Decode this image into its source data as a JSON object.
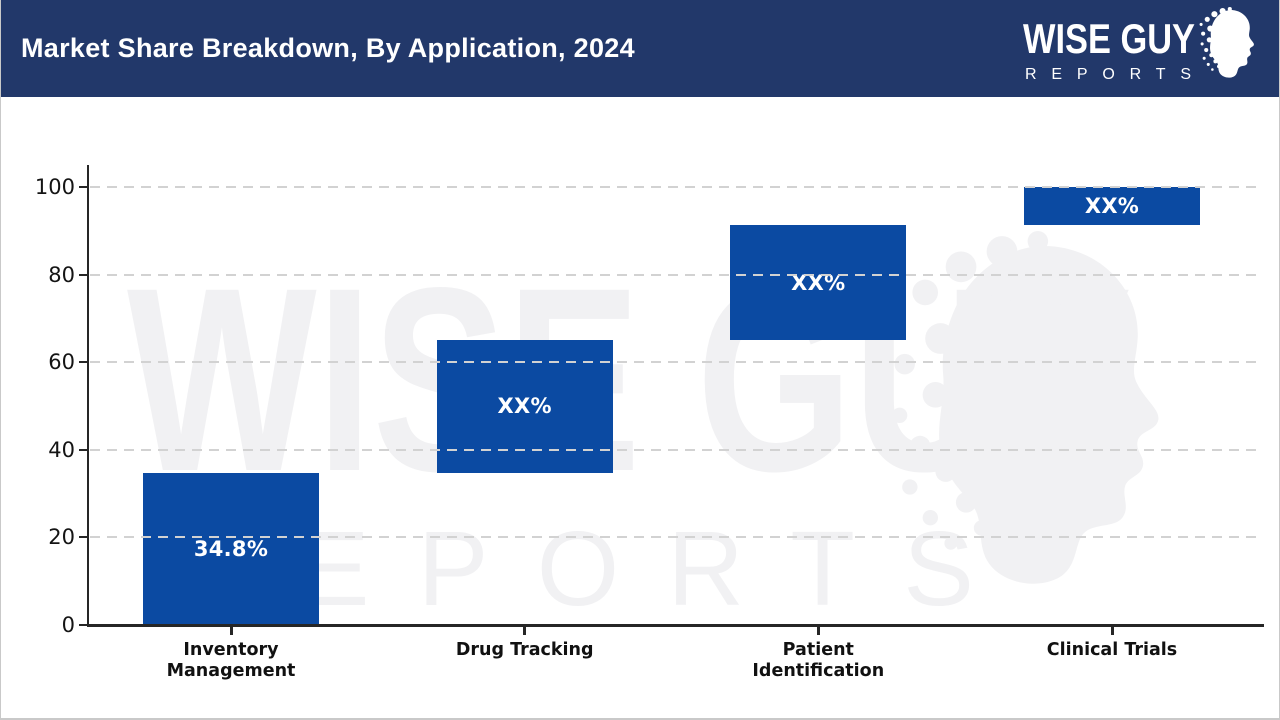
{
  "header": {
    "title": "Market Share Breakdown, By Application, 2024",
    "background_color": "#22386a",
    "logo": {
      "title": "WISE GUY",
      "subtitle": "REPORTS",
      "face_icon": "dotted-head-profile"
    }
  },
  "watermark": {
    "title": "WISE GUY",
    "subtitle": "REPORTS",
    "face_icon": "dotted-head-profile"
  },
  "chart_data": {
    "type": "bar",
    "subtype": "waterfall",
    "title": "Market Share Breakdown, By Application, 2024",
    "categories": [
      [
        "Inventory",
        "Management"
      ],
      [
        "Drug Tracking"
      ],
      [
        "Patient",
        "Identification"
      ],
      [
        "Clinical Trials"
      ]
    ],
    "segments": [
      {
        "category": "Inventory Management",
        "start": 0,
        "end": 34.8,
        "label": "34.8%"
      },
      {
        "category": "Drug Tracking",
        "start": 34.8,
        "end": 65,
        "label": "XX%"
      },
      {
        "category": "Patient Identification",
        "start": 65,
        "end": 91.3,
        "label": "XX%"
      },
      {
        "category": "Clinical Trials",
        "start": 91.3,
        "end": 100,
        "label": "XX%"
      }
    ],
    "ylim": [
      0,
      100
    ],
    "yticks": [
      0,
      20,
      40,
      60,
      80,
      100
    ],
    "xlabel": "",
    "ylabel": "",
    "grid": "horizontal-dashed",
    "legend": "none",
    "bar_color": "#0b4aa2",
    "bar_label_color": "#ffffff",
    "axis_color": "#262626",
    "gridline_color": "#d2d2d2"
  }
}
